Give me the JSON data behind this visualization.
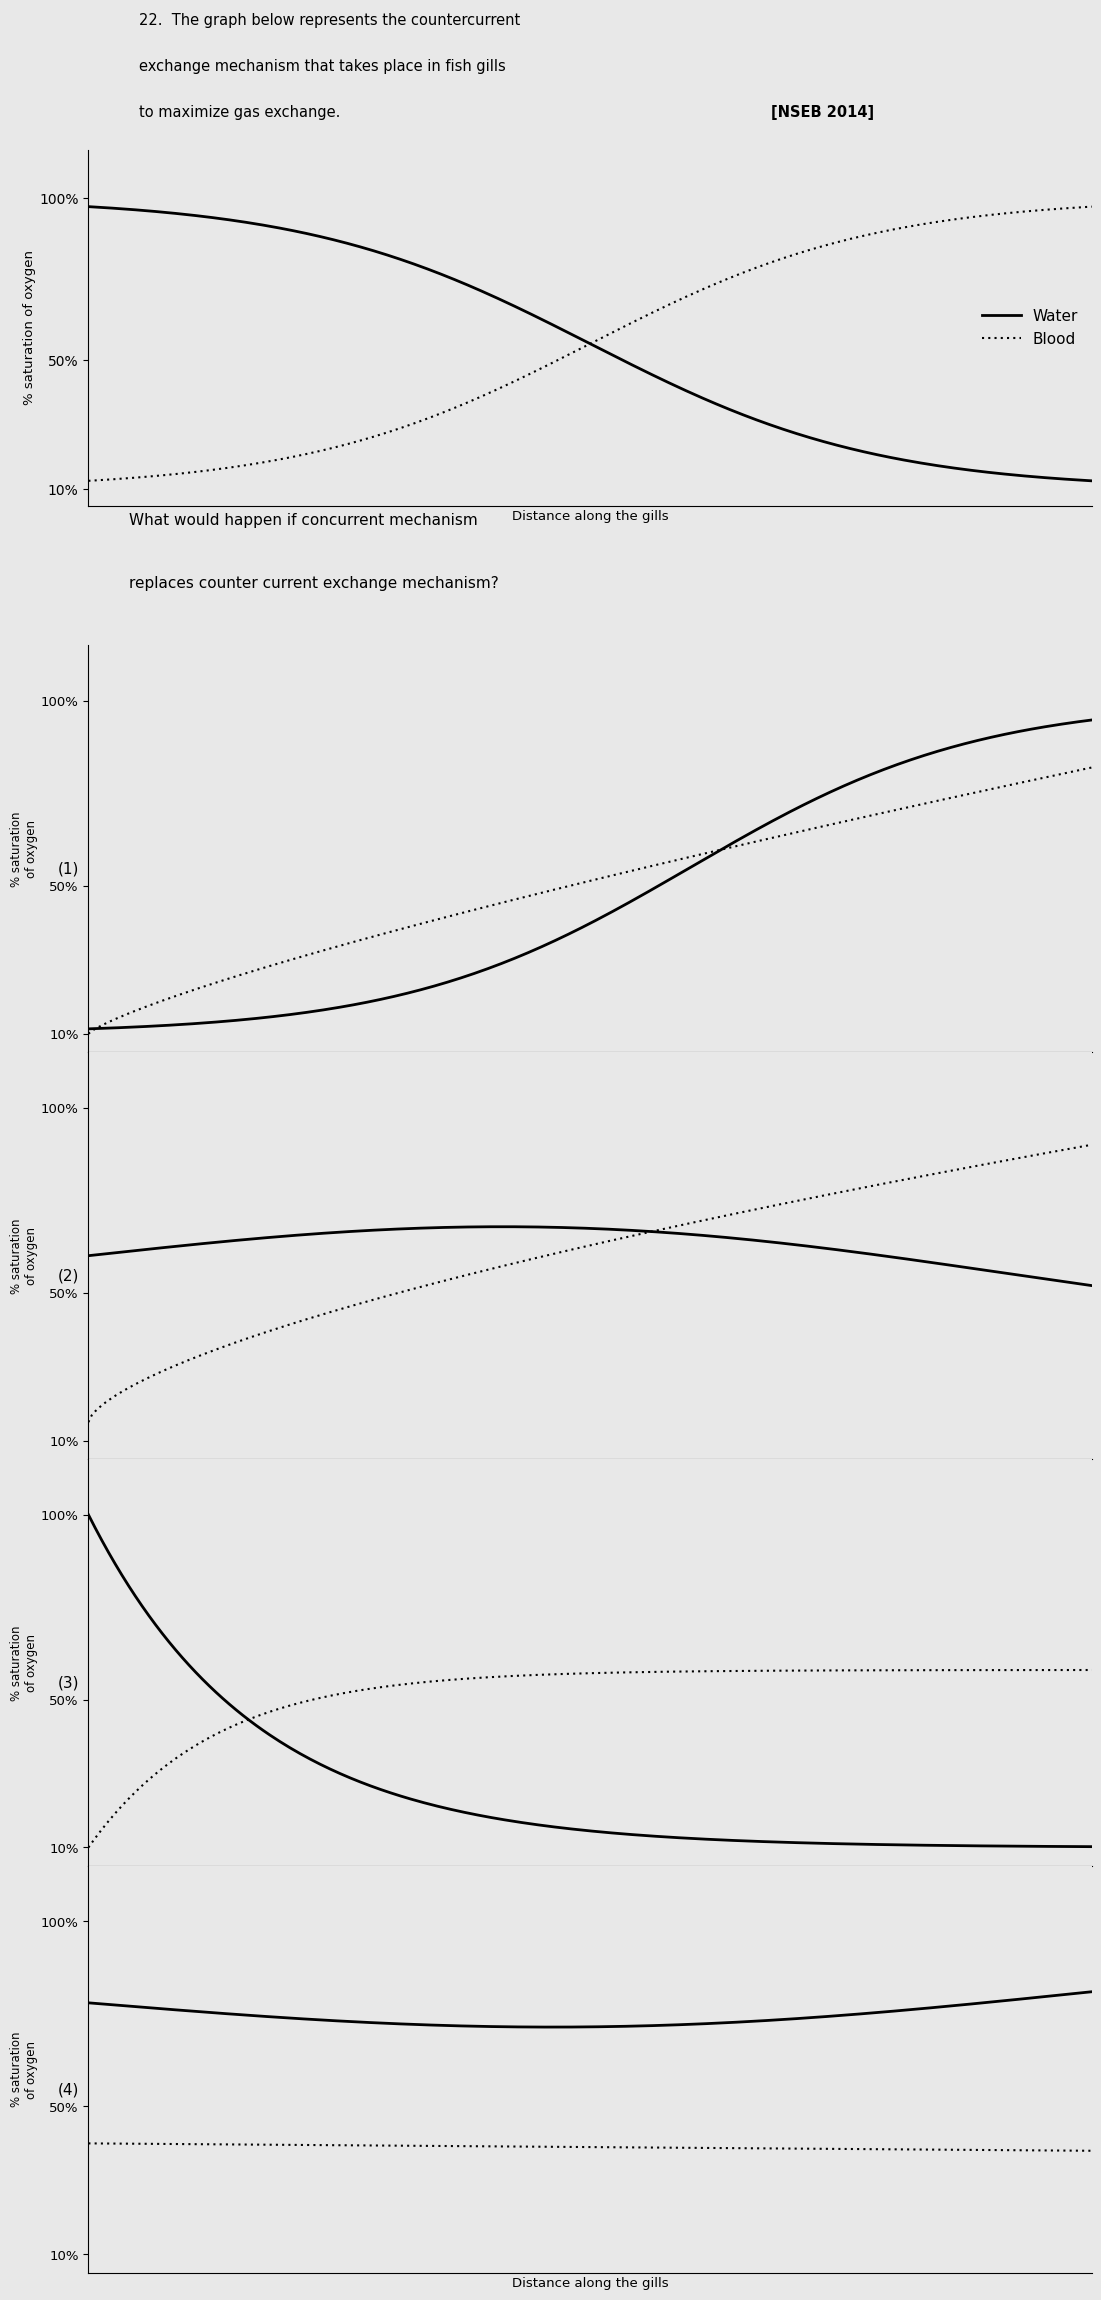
{
  "bg_color": "#e8e8e8",
  "plot_bg": "#e8e8e8",
  "question_line1": "22.  The graph below represents the countercurrent",
  "question_line2": "exchange mechanism that takes place in fish gills",
  "question_line3": "to maximize gas exchange.",
  "nseb_text": "[NSEB 2014]",
  "sub_question_line1": "What would happen if concurrent mechanism",
  "sub_question_line2": "replaces counter current exchange mechanism?",
  "xlabel": "Distance along the gills",
  "yticks_labels": [
    "10%",
    "50%",
    "100%"
  ],
  "ytick_vals": [
    10,
    50,
    100
  ],
  "legend_water": "Water",
  "legend_blood": "Blood",
  "option_labels": [
    "(1)",
    "(2)",
    "(3)",
    "(4)"
  ],
  "ylabel_main": "% saturation of oxygen",
  "ylabel_sub": "% saturation\nof oxygen"
}
